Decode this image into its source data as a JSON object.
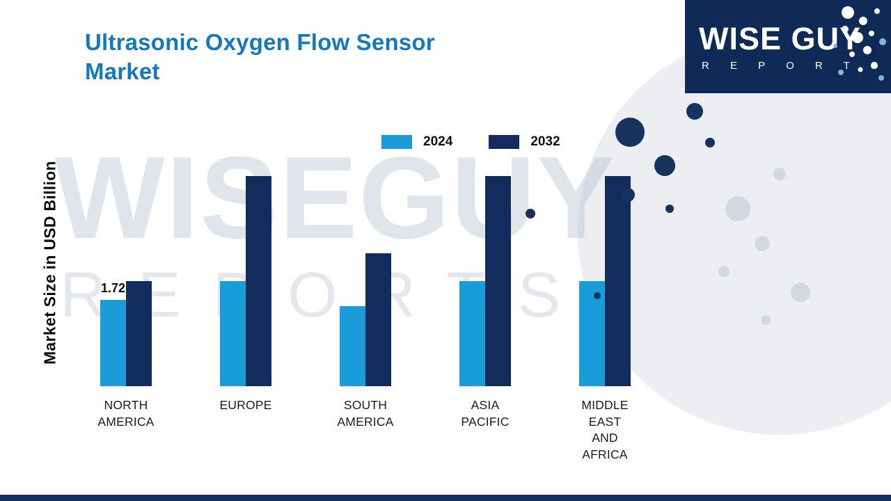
{
  "title": "Ultrasonic Oxygen Flow Sensor\nMarket",
  "watermark": {
    "line1": "WISEGUY",
    "line2": "REPORTS"
  },
  "logo": {
    "line1": "WISE GUY",
    "line2": "R E P O R T S"
  },
  "colors": {
    "series_2024": "#1a9cd8",
    "series_2032": "#122c5e",
    "title_blue": "#1478bd",
    "logo_navy": "#0f2a56",
    "footer_navy": "#12305e"
  },
  "chart_data": {
    "type": "bar",
    "title": "Ultrasonic Oxygen Flow Sensor Market",
    "xlabel": "",
    "ylabel": "Market Size in USD Billion",
    "ylim": [
      0,
      4.5
    ],
    "grid": false,
    "legend_position": "top",
    "categories": [
      "NORTH\nAMERICA",
      "EUROPE",
      "SOUTH\nAMERICA",
      "ASIA\nPACIFIC",
      "MIDDLE\nEAST\nAND\nAFRICA"
    ],
    "series": [
      {
        "name": "2024",
        "color": "#1a9cd8",
        "values": [
          1.72,
          2.1,
          1.6,
          2.1,
          2.1
        ]
      },
      {
        "name": "2032",
        "color": "#122c5e",
        "values": [
          2.1,
          4.2,
          2.65,
          4.2,
          4.2
        ]
      }
    ],
    "annotations": [
      {
        "category_index": 0,
        "series_index": 0,
        "text": "1.72"
      }
    ]
  }
}
